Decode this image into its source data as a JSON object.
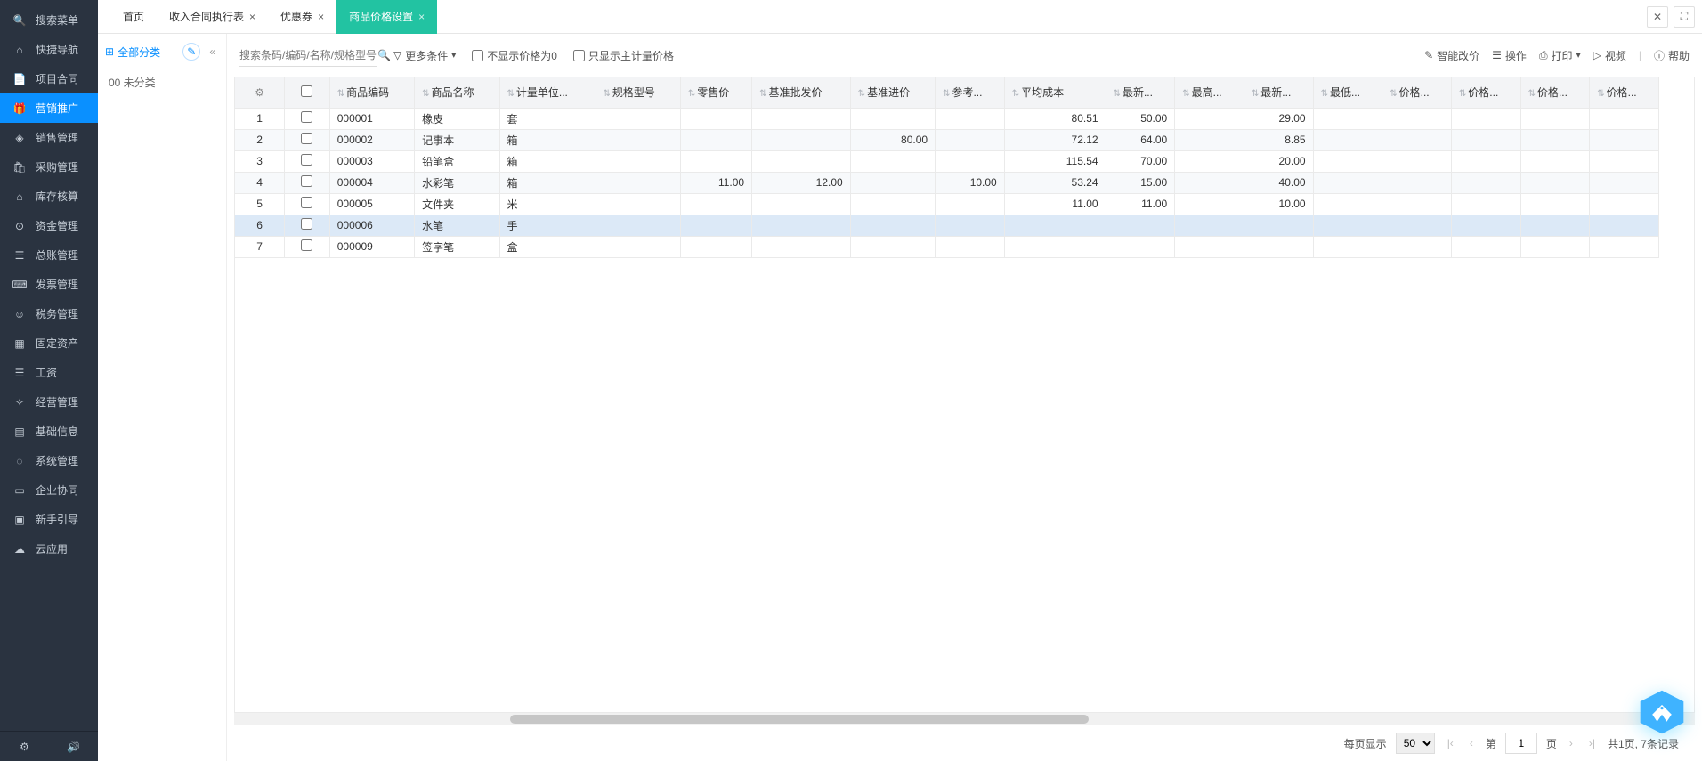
{
  "sidebar": {
    "items": [
      {
        "label": "搜索菜单",
        "icon": "search"
      },
      {
        "label": "快捷导航",
        "icon": "home"
      },
      {
        "label": "项目合同",
        "icon": "doc"
      },
      {
        "label": "营销推广",
        "icon": "gift",
        "active": true
      },
      {
        "label": "销售管理",
        "icon": "cart"
      },
      {
        "label": "采购管理",
        "icon": "bag"
      },
      {
        "label": "库存核算",
        "icon": "house"
      },
      {
        "label": "资金管理",
        "icon": "money"
      },
      {
        "label": "总账管理",
        "icon": "ledger"
      },
      {
        "label": "发票管理",
        "icon": "receipt"
      },
      {
        "label": "税务管理",
        "icon": "tax"
      },
      {
        "label": "固定资产",
        "icon": "asset"
      },
      {
        "label": "工资",
        "icon": "wage"
      },
      {
        "label": "经营管理",
        "icon": "mgmt"
      },
      {
        "label": "基础信息",
        "icon": "info"
      },
      {
        "label": "系统管理",
        "icon": "system"
      },
      {
        "label": "企业协同",
        "icon": "collab"
      },
      {
        "label": "新手引导",
        "icon": "guide"
      },
      {
        "label": "云应用",
        "icon": "cloud"
      }
    ]
  },
  "tabs": [
    {
      "label": "首页",
      "closable": false
    },
    {
      "label": "收入合同执行表",
      "closable": true
    },
    {
      "label": "优惠券",
      "closable": true
    },
    {
      "label": "商品价格设置",
      "closable": true,
      "active": true
    }
  ],
  "catPanel": {
    "all": "全部分类",
    "tree": "00 未分类"
  },
  "toolbar": {
    "searchPlaceholder": "搜索条码/编码/名称/规格型号/别名",
    "more": "更多条件",
    "hideZero": "不显示价格为0",
    "onlyMain": "只显示主计量价格",
    "smartPrice": "智能改价",
    "operate": "操作",
    "print": "打印",
    "video": "视频",
    "help": "帮助"
  },
  "table": {
    "columns": [
      "商品编码",
      "商品名称",
      "计量单位...",
      "规格型号",
      "零售价",
      "基准批发价",
      "基准进价",
      "参考...",
      "平均成本",
      "最新...",
      "最高...",
      "最新...",
      "最低...",
      "价格...",
      "价格...",
      "价格...",
      "价格..."
    ],
    "rows": [
      {
        "idx": "1",
        "code": "000001",
        "name": "橡皮",
        "unit": "套",
        "retail": "",
        "whole": "",
        "pur": "",
        "ref": "",
        "avg": "80.51",
        "new1": "50.00",
        "high": "",
        "new2": "29.00",
        "low": ""
      },
      {
        "idx": "2",
        "code": "000002",
        "name": "记事本",
        "unit": "箱",
        "retail": "",
        "whole": "",
        "pur": "80.00",
        "ref": "",
        "avg": "72.12",
        "new1": "64.00",
        "high": "",
        "new2": "8.85",
        "low": ""
      },
      {
        "idx": "3",
        "code": "000003",
        "name": "铅笔盒",
        "unit": "箱",
        "retail": "",
        "whole": "",
        "pur": "",
        "ref": "",
        "avg": "115.54",
        "new1": "70.00",
        "high": "",
        "new2": "20.00",
        "low": ""
      },
      {
        "idx": "4",
        "code": "000004",
        "name": "水彩笔",
        "unit": "箱",
        "retail": "11.00",
        "whole": "12.00",
        "pur": "",
        "ref": "10.00",
        "avg": "53.24",
        "new1": "15.00",
        "high": "",
        "new2": "40.00",
        "low": ""
      },
      {
        "idx": "5",
        "code": "000005",
        "name": "文件夹",
        "unit": "米",
        "retail": "",
        "whole": "",
        "pur": "",
        "ref": "",
        "avg": "11.00",
        "new1": "11.00",
        "high": "",
        "new2": "10.00",
        "low": ""
      },
      {
        "idx": "6",
        "code": "000006",
        "name": "水笔",
        "unit": "手",
        "retail": "",
        "whole": "",
        "pur": "",
        "ref": "",
        "avg": "",
        "new1": "",
        "high": "",
        "new2": "",
        "low": "",
        "highlight": true
      },
      {
        "idx": "7",
        "code": "000009",
        "name": "签字笔",
        "unit": "盒",
        "retail": "",
        "whole": "",
        "pur": "",
        "ref": "",
        "avg": "",
        "new1": "",
        "high": "",
        "new2": "",
        "low": ""
      }
    ]
  },
  "pagination": {
    "perPageLabel": "每页显示",
    "perPage": "50",
    "pagePrefix": "第",
    "page": "1",
    "pageSuffix": "页",
    "summary": "共1页, 7条记录"
  },
  "colors": {
    "sidebarBg": "#2a3340",
    "sidebarActive": "#0a90ff",
    "tabActive": "#22c3a2",
    "link": "#0a90ff",
    "headerBg": "#f3f4f6",
    "evenRow": "#f7f9fb",
    "highlightRow": "#dce9f7"
  }
}
